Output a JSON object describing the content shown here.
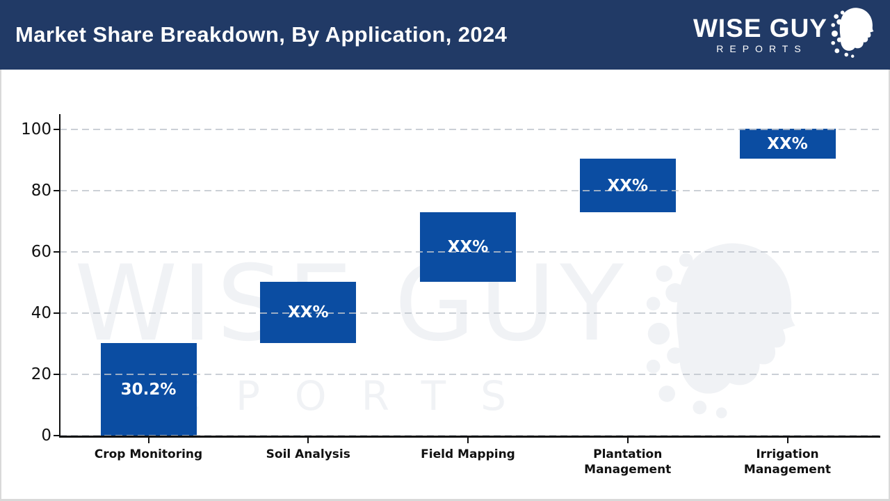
{
  "header": {
    "title": "Market Share Breakdown, By Application, 2024",
    "logo": {
      "wordmark": "WISE GUY",
      "subtext": "REPORTS"
    }
  },
  "watermark": {
    "wordmark": "WISE GUY",
    "subtext": "REPORTS"
  },
  "colors": {
    "header_bg": "#213a66",
    "bar_blue": "#0b4da2",
    "bar_label_text": "#ffffff",
    "axis": "#111111",
    "gridline": "#d9d9d9",
    "watermark": "#f0f2f5",
    "content_border": "#d9d9d9"
  },
  "chart_data": {
    "type": "bar",
    "subtype": "floating-waterfall",
    "title": "Market Share Breakdown, By Application, 2024",
    "categories": [
      "Crop Monitoring",
      "Soil Analysis",
      "Field Mapping",
      "Plantation\nManagement",
      "Irrigation\nManagement"
    ],
    "segments": [
      {
        "category": "Crop Monitoring",
        "start": 0,
        "end": 30.2,
        "label": "30.2%"
      },
      {
        "category": "Soil Analysis",
        "start": 30.2,
        "end": 50.3,
        "label": "XX%"
      },
      {
        "category": "Field Mapping",
        "start": 50.3,
        "end": 73.0,
        "label": "XX%"
      },
      {
        "category": "Plantation Management",
        "start": 73.0,
        "end": 90.5,
        "label": "XX%"
      },
      {
        "category": "Irrigation Management",
        "start": 90.5,
        "end": 100.3,
        "label": "XX%"
      }
    ],
    "yticks": [
      0,
      20,
      40,
      60,
      80,
      100
    ],
    "ylim": [
      0,
      105
    ],
    "xlabel": "",
    "ylabel": "",
    "bar_color": "#0b4da2",
    "grid": {
      "axis": "y",
      "style": "dashed",
      "color": "#d9d9d9",
      "over_bars": true
    },
    "legend": null
  }
}
